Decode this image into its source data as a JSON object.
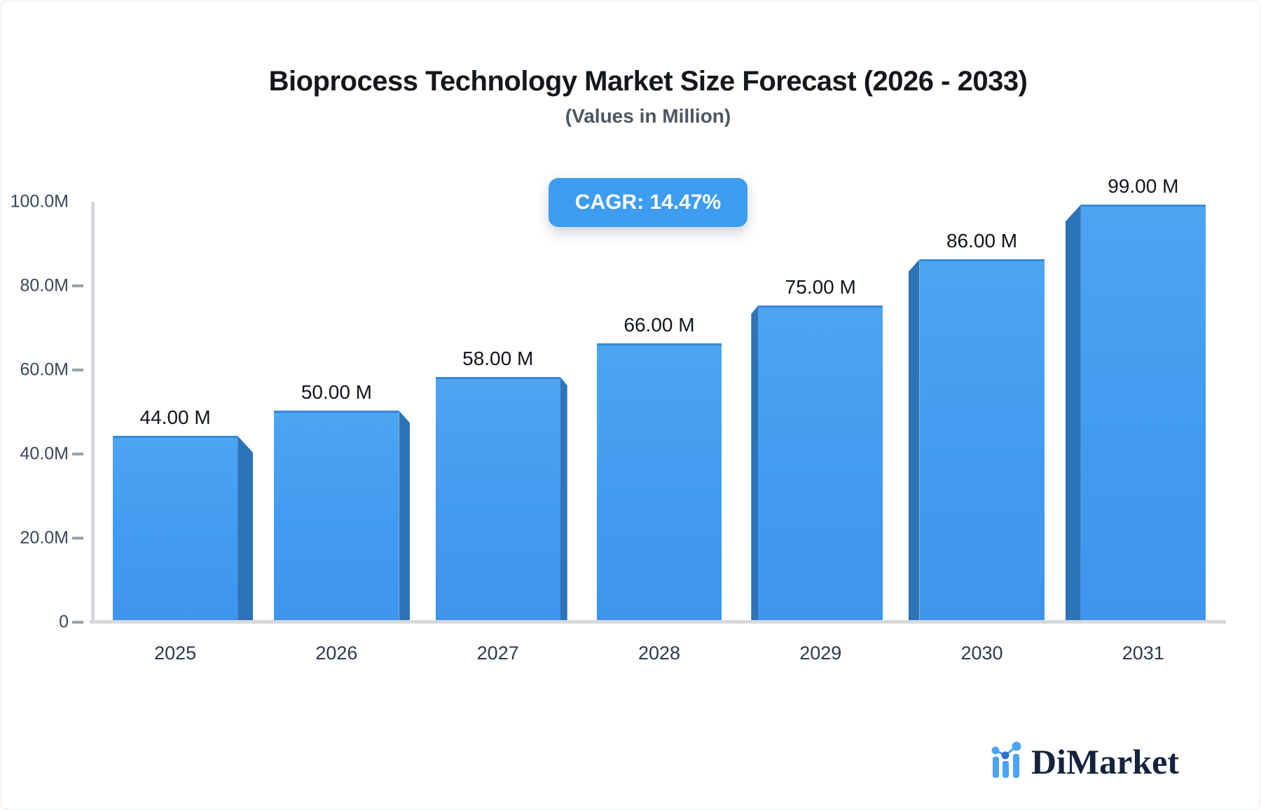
{
  "header": {
    "title": "Bioprocess Technology Market Size Forecast (2026 - 2033)",
    "subtitle": "(Values in Million)",
    "cagr_label": "CAGR: 14.47%"
  },
  "chart_data": {
    "type": "bar",
    "title": "Bioprocess Technology Market Size Forecast (2026 - 2033)",
    "subtitle": "(Values in Million)",
    "annotation": "CAGR: 14.47%",
    "categories": [
      "2025",
      "2026",
      "2027",
      "2028",
      "2029",
      "2030",
      "2031"
    ],
    "values": [
      44,
      50,
      58,
      66,
      75,
      86,
      99
    ],
    "value_labels": [
      "44.00 M",
      "50.00 M",
      "58.00 M",
      "66.00 M",
      "75.00 M",
      "86.00 M",
      "99.00 M"
    ],
    "unit": "Million",
    "xlabel": "",
    "ylabel": "",
    "ylim": [
      0,
      100
    ],
    "grid": false,
    "legend": null,
    "y_ticks": [
      {
        "label": "100.0M",
        "value": 100
      },
      {
        "label": "80.0M",
        "value": 80
      },
      {
        "label": "60.0M",
        "value": 60
      },
      {
        "label": "40.0M",
        "value": 40
      },
      {
        "label": "20.0M",
        "value": 20
      },
      {
        "label": "0",
        "value": 0
      }
    ],
    "colors": {
      "bar_face": "#459ef0",
      "bar_side_3d": "#2d73b7",
      "badge_background": "#3e9cf1",
      "badge_text": "#ffffff",
      "axis_line": "#d4d8dd",
      "tick_text": "#3b475a",
      "label_text": "#10161d"
    }
  },
  "logo": {
    "text": "DiMarket",
    "icon": "bar-chart-logo-icon",
    "text_color": "#16233e",
    "icon_color": "#4da3f5",
    "icon_dot_color": "#2d6fd3"
  }
}
